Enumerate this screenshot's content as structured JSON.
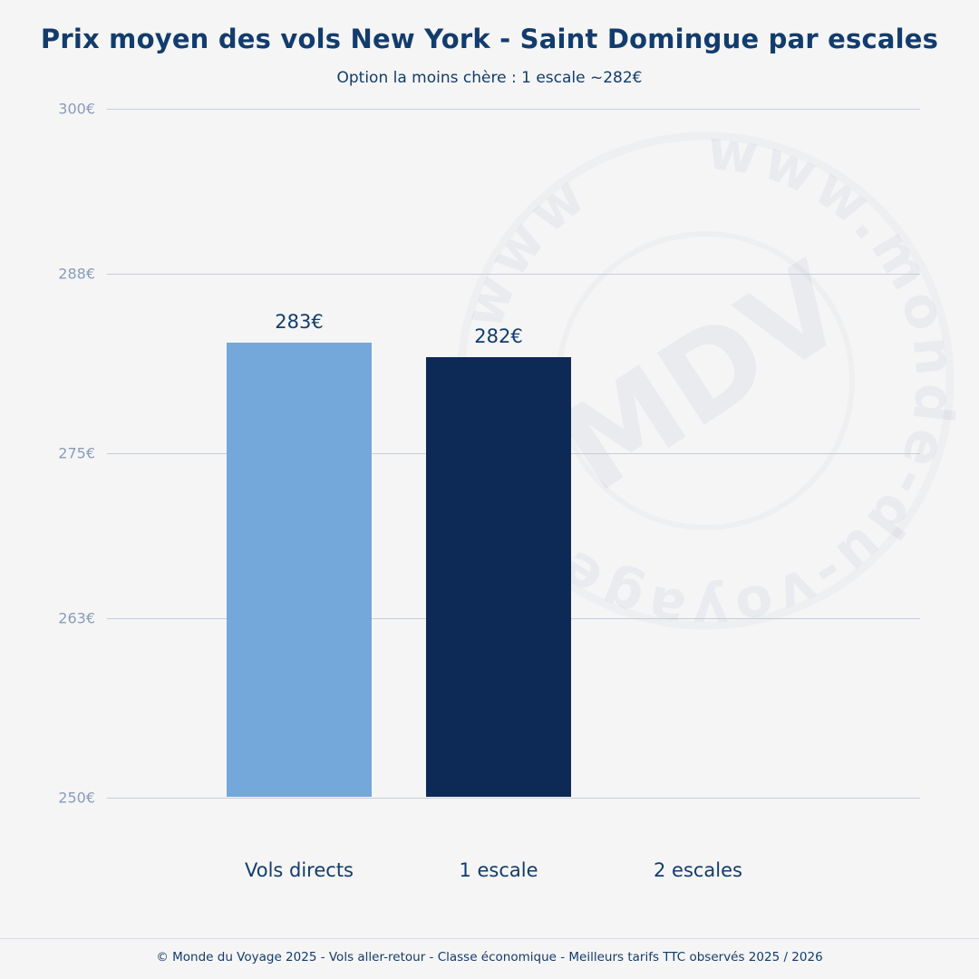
{
  "header": {
    "title": "Prix moyen des vols New York - Saint Domingue par escales",
    "subtitle": "Option la moins chère : 1 escale ~282€"
  },
  "chart_data": {
    "type": "bar",
    "title": "Prix moyen des vols New York - Saint Domingue par escales",
    "categories": [
      "Vols directs",
      "1 escale",
      "2 escales"
    ],
    "values": [
      283,
      282,
      null
    ],
    "value_labels": [
      "283€",
      "282€",
      ""
    ],
    "yticks": [
      300,
      288,
      275,
      263,
      250
    ],
    "ytick_labels": [
      "300€",
      "288€",
      "275€",
      "263€",
      "250€"
    ],
    "ylim": [
      250,
      300
    ],
    "grid": true,
    "legend": "none",
    "bar_colors": [
      "#74a7da",
      "#0d2a56",
      "#0d2a56"
    ]
  },
  "watermark": {
    "circle_text": "www.monde-du-voyage.com . www",
    "center_text": "MDV"
  },
  "footer": {
    "text": "© Monde du Voyage 2025 - Vols aller-retour - Classe économique - Meilleurs tarifs TTC observés 2025 / 2026"
  },
  "colors": {
    "title": "#123c6d",
    "axis_label": "#8a9cba",
    "gridline": "#c7ccd9",
    "background": "#f5f5f6",
    "bar_light": "#74a7da",
    "bar_dark": "#0d2a56"
  }
}
